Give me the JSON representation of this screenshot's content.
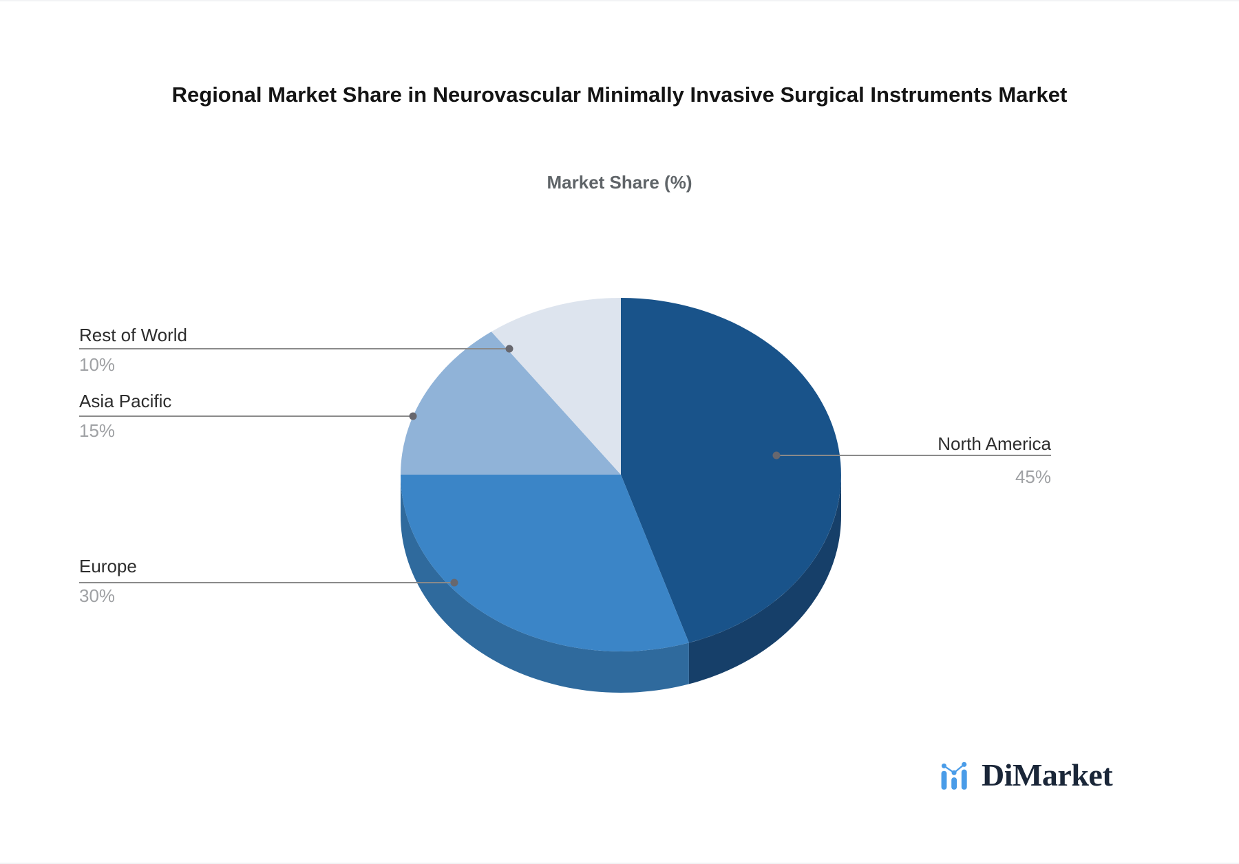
{
  "page": {
    "background_color": "#ffffff"
  },
  "header": {
    "title": "Regional Market Share in Neurovascular Minimally Invasive Surgical Instruments Market",
    "subtitle": "Market Share (%)"
  },
  "chart_data": {
    "type": "pie",
    "title": "Regional Market Share in Neurovascular Minimally Invasive Surgical Instruments Market",
    "subtitle": "Market Share (%)",
    "effect": "3d",
    "start_angle_deg": 0,
    "direction": "clockwise",
    "legend_position": "none",
    "unit": "%",
    "categories": [
      "North America",
      "Europe",
      "Asia Pacific",
      "Rest of World"
    ],
    "values": [
      45,
      30,
      15,
      10
    ],
    "slices": [
      {
        "name": "North America",
        "value": 45,
        "pct": "45%",
        "color": "#19538A",
        "side_color": "#163F69"
      },
      {
        "name": "Europe",
        "value": 30,
        "pct": "30%",
        "color": "#3B85C7",
        "side_color": "#2F6A9D"
      },
      {
        "name": "Asia Pacific",
        "value": 15,
        "pct": "15%",
        "color": "#90B3D8",
        "side_color": "#6E87A4"
      },
      {
        "name": "Rest of World",
        "value": 10,
        "pct": "10%",
        "color": "#DDE4EE",
        "side_color": "#A7ADB8"
      }
    ],
    "connector_color": "#8a8a8a",
    "connector_dot_color": "#67676e"
  },
  "branding": {
    "logo_text": "DiMarket",
    "logo_icon": "bar-line-chart-icon",
    "logo_icon_color": "#4A9CE8",
    "logo_text_color": "#1a2638"
  }
}
